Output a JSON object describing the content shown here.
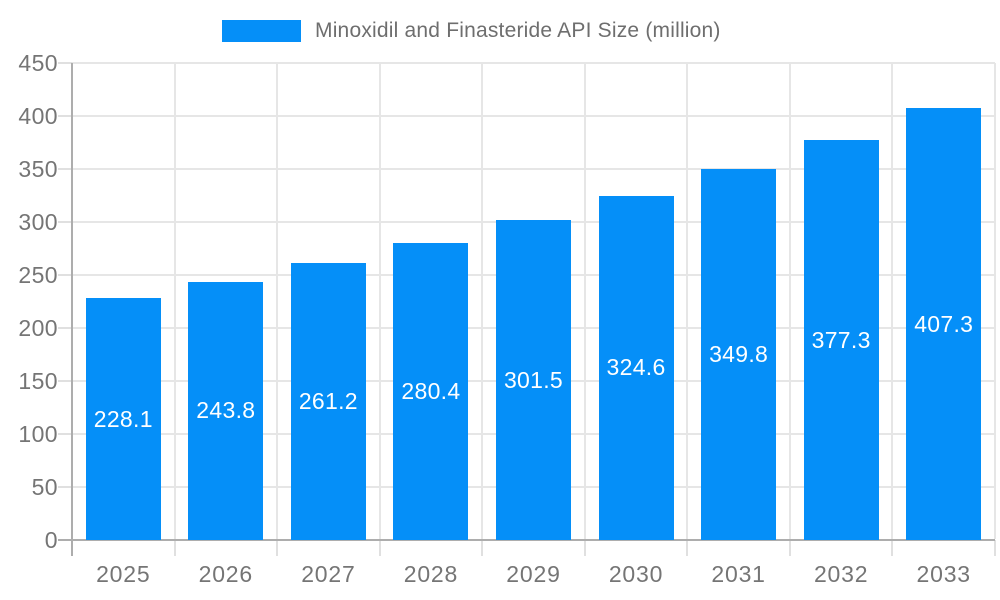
{
  "chart_data": {
    "type": "bar",
    "title": "Minoxidil and Finasteride API Size (million)",
    "categories": [
      "2025",
      "2026",
      "2027",
      "2028",
      "2029",
      "2030",
      "2031",
      "2032",
      "2033"
    ],
    "values": [
      228.1,
      243.8,
      261.2,
      280.4,
      301.5,
      324.6,
      349.8,
      377.3,
      407.3
    ],
    "value_labels": [
      "228.1",
      "243.8",
      "261.2",
      "280.4",
      "301.5",
      "324.6",
      "349.8",
      "377.3",
      "407.3"
    ],
    "xlabel": "",
    "ylabel": "",
    "ylim": [
      0,
      450
    ],
    "ytick_interval": 50,
    "y_ticks": [
      "0",
      "50",
      "100",
      "150",
      "200",
      "250",
      "300",
      "350",
      "400",
      "450"
    ],
    "grid": true,
    "legend_position": "top",
    "colors": {
      "bar": "#058FF8",
      "grid": "#E6E6E6",
      "tick": "#E0E0E0",
      "axis": "#ADADAD",
      "tick_text": "#757575",
      "legend_text": "#6E6E6E",
      "bar_label_text": "#FFFFFF",
      "background": "#FFFFFF"
    }
  }
}
